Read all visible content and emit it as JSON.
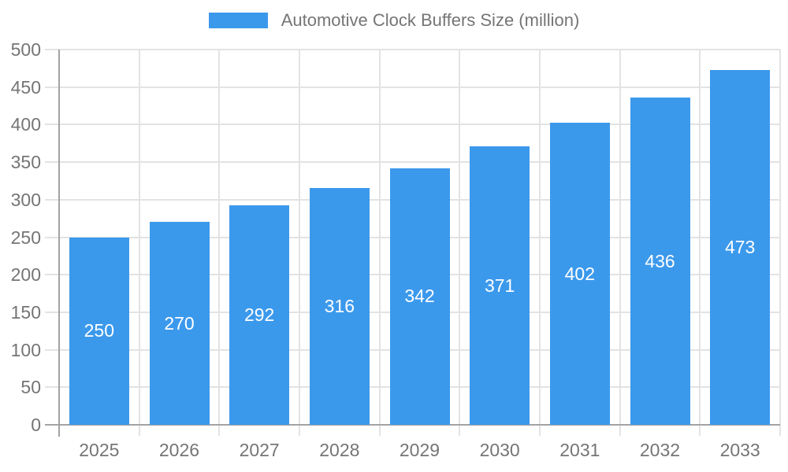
{
  "chart_data": {
    "type": "bar",
    "title": "Automotive Clock Buffers Size (million)",
    "categories": [
      "2025",
      "2026",
      "2027",
      "2028",
      "2029",
      "2030",
      "2031",
      "2032",
      "2033"
    ],
    "values": [
      250,
      270,
      292,
      316,
      342,
      371,
      402,
      436,
      473
    ],
    "series": [
      {
        "name": "Automotive Clock Buffers Size (million)",
        "values": [
          250,
          270,
          292,
          316,
          342,
          371,
          402,
          436,
          473
        ]
      }
    ],
    "xlabel": "",
    "ylabel": "",
    "ylim": [
      0,
      500
    ],
    "ytick_step": 50,
    "yticks": [
      0,
      50,
      100,
      150,
      200,
      250,
      300,
      350,
      400,
      450,
      500
    ],
    "grid": true,
    "legend_position": "top-center",
    "value_labels": "centered-inside-bars",
    "colors": {
      "bar": "#3B99EC",
      "bar_label": "#FFFFFF",
      "axis_text": "#757575",
      "axis_line": "#A3A3A3",
      "gridline": "#E3E3E3",
      "background": "#FFFFFF"
    }
  }
}
